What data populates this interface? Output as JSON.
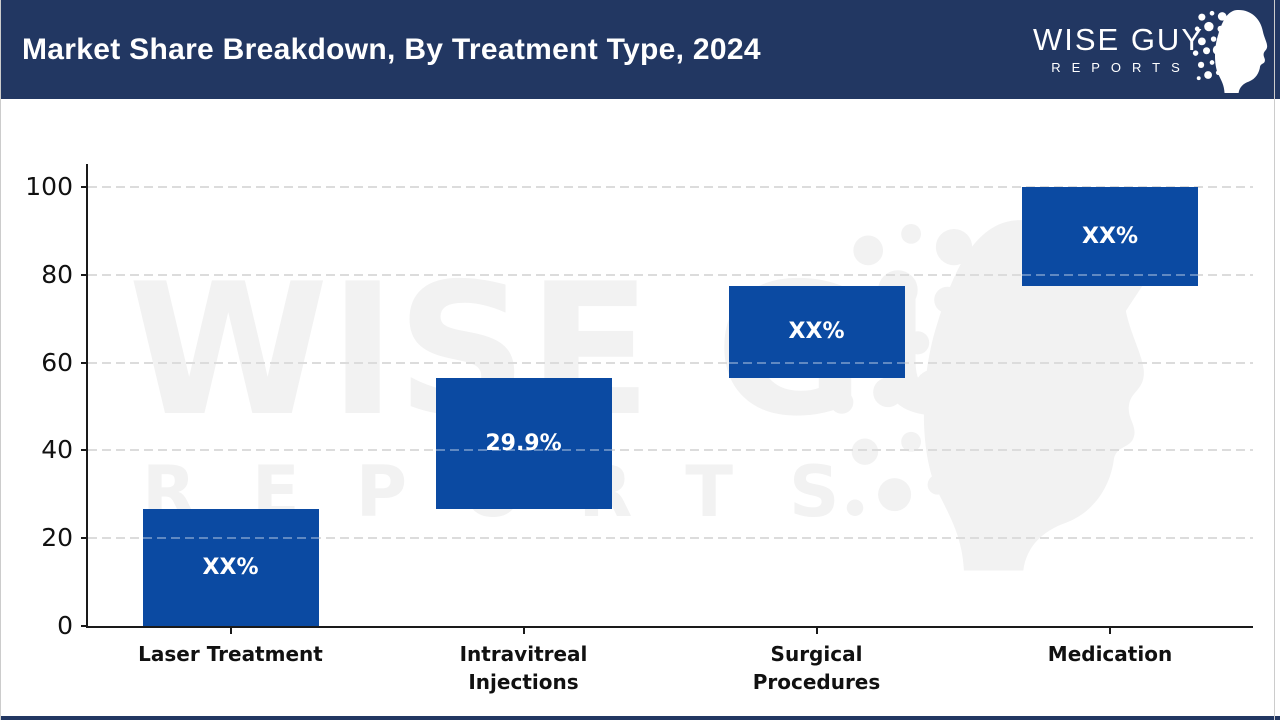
{
  "header": {
    "title": "Market Share Breakdown, By Treatment Type, 2024",
    "logo": {
      "top": "WISE GUY",
      "bottom": "REPORTS"
    }
  },
  "watermark": {
    "line1": "WISE GUY",
    "line2": "REPORTS"
  },
  "chart_data": {
    "type": "bar",
    "subtype": "waterfall",
    "title": "Market Share Breakdown, By Treatment Type, 2024",
    "categories": [
      "Laser Treatment",
      "Intravitreal Injections",
      "Surgical Procedures",
      "Medication"
    ],
    "category_lines": [
      [
        "Laser Treatment"
      ],
      [
        "Intravitreal",
        "Injections"
      ],
      [
        "Surgical",
        "Procedures"
      ],
      [
        "Medication"
      ]
    ],
    "series": [
      {
        "name": "Market Share",
        "segments": [
          {
            "category": "Laser Treatment",
            "start": 0,
            "end": 26.7,
            "value": 26.7,
            "label": "XX%"
          },
          {
            "category": "Intravitreal Injections",
            "start": 26.7,
            "end": 56.6,
            "value": 29.9,
            "label": "29.9%"
          },
          {
            "category": "Surgical Procedures",
            "start": 56.6,
            "end": 77.4,
            "value": 20.8,
            "label": "XX%"
          },
          {
            "category": "Medication",
            "start": 77.4,
            "end": 100,
            "value": 22.6,
            "label": "XX%"
          }
        ]
      }
    ],
    "xlabel": "",
    "ylabel": "",
    "ylim": [
      0,
      100
    ],
    "yticks": [
      0,
      20,
      40,
      60,
      80,
      100
    ],
    "grid": "horizontal-dashed",
    "legend": "none",
    "colors": {
      "bar": "#0b4aa2",
      "bar_label": "#ffffff",
      "grid": "#dcdcdc",
      "axis": "#1a1a1a",
      "tick_text": "#111111",
      "header_bg": "#223762",
      "watermark": "#f2f2f2"
    }
  }
}
